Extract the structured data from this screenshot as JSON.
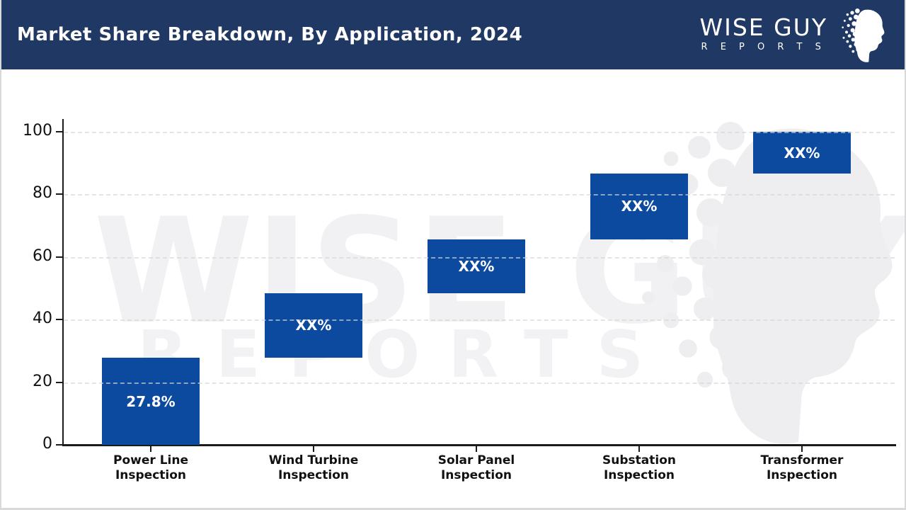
{
  "page": {
    "background": "#ffffff",
    "border_color": "#d9d9d9"
  },
  "header": {
    "background": "#203864",
    "title": "Market Share Breakdown, By Application, 2024",
    "logo_line1": "WISE GUY",
    "logo_line2": "R E P O R T S"
  },
  "watermark": {
    "line1": "WISE GUY",
    "line2": "REPORTS"
  },
  "chart_data": {
    "type": "bar",
    "variant": "waterfall",
    "title": "Market Share Breakdown, By Application, 2024",
    "xlabel": "",
    "ylabel": "",
    "ylim": [
      0,
      100
    ],
    "yticks": [
      0,
      20,
      40,
      60,
      80,
      100
    ],
    "grid": "horizontal-dashed",
    "legend": "none",
    "bar_color": "#0b4a9f",
    "bar_label_color": "#ffffff",
    "categories": [
      {
        "line1": "Power Line",
        "line2": "Inspection"
      },
      {
        "line1": "Wind Turbine",
        "line2": "Inspection"
      },
      {
        "line1": "Solar Panel",
        "line2": "Inspection"
      },
      {
        "line1": "Substation",
        "line2": "Inspection"
      },
      {
        "line1": "Transformer",
        "line2": "Inspection"
      }
    ],
    "bars": [
      {
        "category": "Power Line Inspection",
        "start": 0,
        "end": 27.8,
        "label": "27.8%"
      },
      {
        "category": "Wind Turbine Inspection",
        "start": 27.8,
        "end": 48.5,
        "label": "XX%"
      },
      {
        "category": "Solar Panel Inspection",
        "start": 48.5,
        "end": 65.7,
        "label": "XX%"
      },
      {
        "category": "Substation Inspection",
        "start": 65.7,
        "end": 86.6,
        "label": "XX%"
      },
      {
        "category": "Transformer Inspection",
        "start": 86.6,
        "end": 100,
        "label": "XX%"
      }
    ]
  }
}
